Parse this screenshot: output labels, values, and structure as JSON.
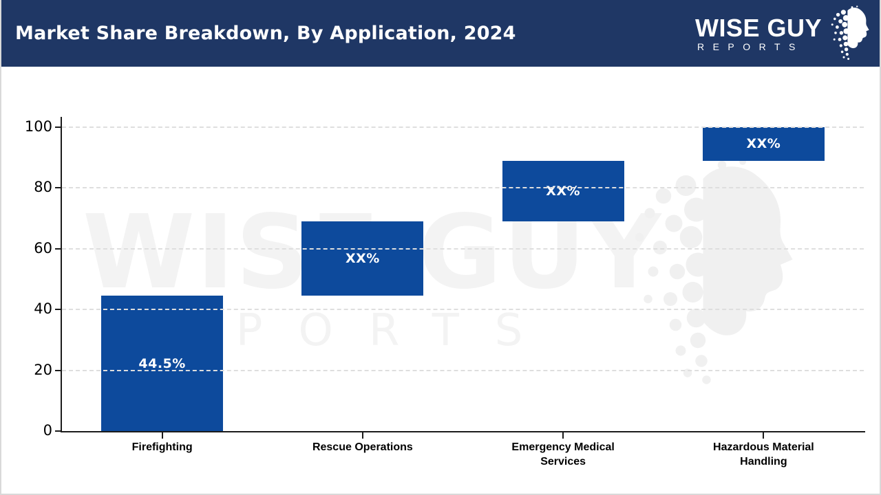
{
  "header": {
    "title": "Market Share Breakdown, By Application, 2024",
    "logo": {
      "name": "WISE GUY",
      "sub": "REPORTS"
    }
  },
  "watermark": {
    "big": "WISE GUY",
    "sub": "REPORTS"
  },
  "colors": {
    "header_bg": "#1f3765",
    "bar": "#0d4a9c",
    "grid": "#dedede",
    "axis": "#1a1a1a",
    "watermark_text": "#f3f3f3",
    "watermark_head": "#f0f0f0",
    "bar_label": "#ffffff"
  },
  "chart_data": {
    "type": "bar",
    "subtype": "waterfall",
    "title": "Market Share Breakdown, By Application, 2024",
    "categories": [
      "Firefighting",
      "Rescue Operations",
      "Emergency Medical Services",
      "Hazardous Material Handling"
    ],
    "segments": [
      {
        "category": "Firefighting",
        "label_lines": [
          "Firefighting"
        ],
        "start": 0,
        "end": 44.5,
        "label": "44.5%"
      },
      {
        "category": "Rescue Operations",
        "label_lines": [
          "Rescue Operations"
        ],
        "start": 44.5,
        "end": 69,
        "label": "XX%"
      },
      {
        "category": "Emergency Medical Services",
        "label_lines": [
          "Emergency Medical",
          "Services"
        ],
        "start": 69,
        "end": 89,
        "label": "XX%"
      },
      {
        "category": "Hazardous Material Handling",
        "label_lines": [
          "Hazardous Material",
          "Handling"
        ],
        "start": 89,
        "end": 100,
        "label": "XX%"
      }
    ],
    "yticks": [
      0,
      20,
      40,
      60,
      80,
      100
    ],
    "ylim": [
      0,
      100
    ],
    "grid": "horizontal-dashed",
    "legend": "none",
    "bar_color": "#0d4a9c"
  }
}
